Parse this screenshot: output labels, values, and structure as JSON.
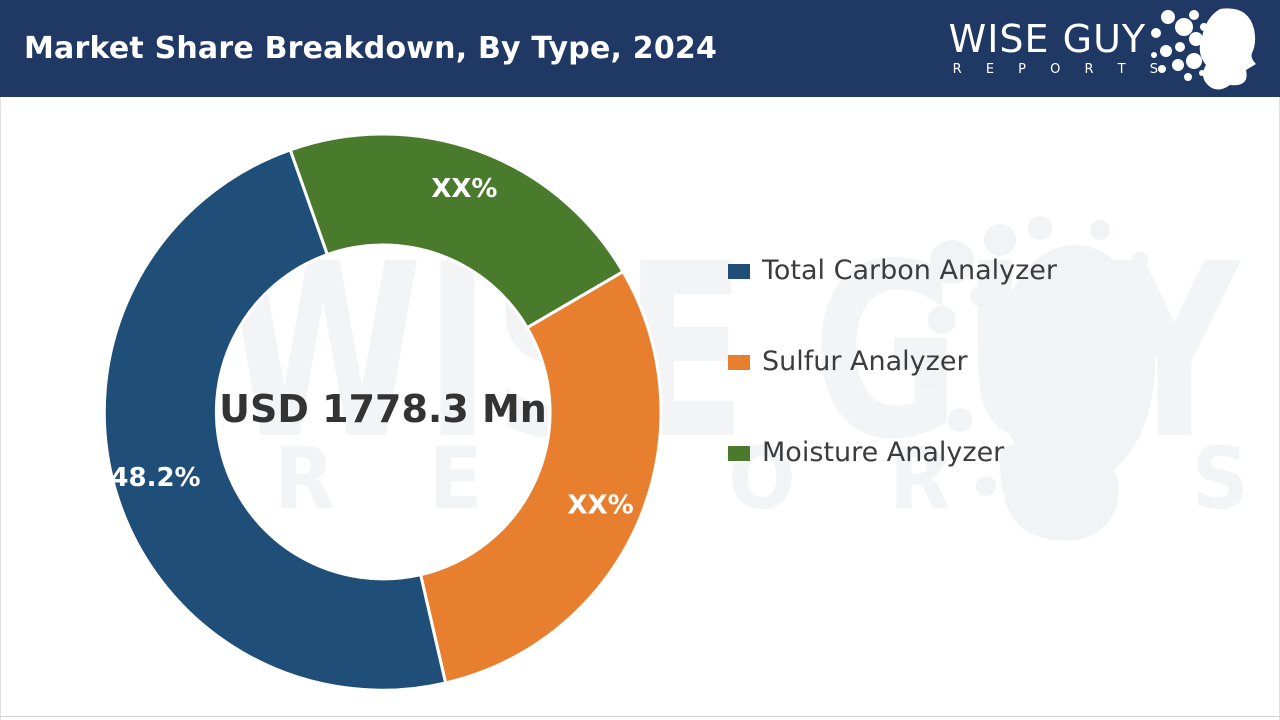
{
  "header": {
    "title": "Market Share Breakdown, By Type, 2024",
    "bg_color": "#203864",
    "logo": {
      "line1": "WISE GUY",
      "line2": "R E P O R T S"
    }
  },
  "chart_data": {
    "type": "donut",
    "title": "Market Share Breakdown, By Type, 2024",
    "center_label": "USD 1778.3 Mn",
    "start_angle_deg": -19.5,
    "legend_position": "right",
    "segments": [
      {
        "name": "Moisture Analyzer",
        "label": "XX%",
        "percent_est": 22.0,
        "color": "#4A7A2C"
      },
      {
        "name": "Sulfur Analyzer",
        "label": "XX%",
        "percent_est": 29.8,
        "color": "#E87F2F"
      },
      {
        "name": "Total Carbon Analyzer",
        "label": "48.2%",
        "percent_est": 48.2,
        "color": "#1F4E79"
      }
    ],
    "legend": [
      {
        "name": "Total Carbon Analyzer",
        "color": "#1F4E79"
      },
      {
        "name": "Sulfur Analyzer",
        "color": "#E87F2F"
      },
      {
        "name": "Moisture Analyzer",
        "color": "#4A7A2C"
      }
    ]
  },
  "watermark": {
    "line1": "WISE GUY",
    "line2": "R E P O R T S"
  }
}
